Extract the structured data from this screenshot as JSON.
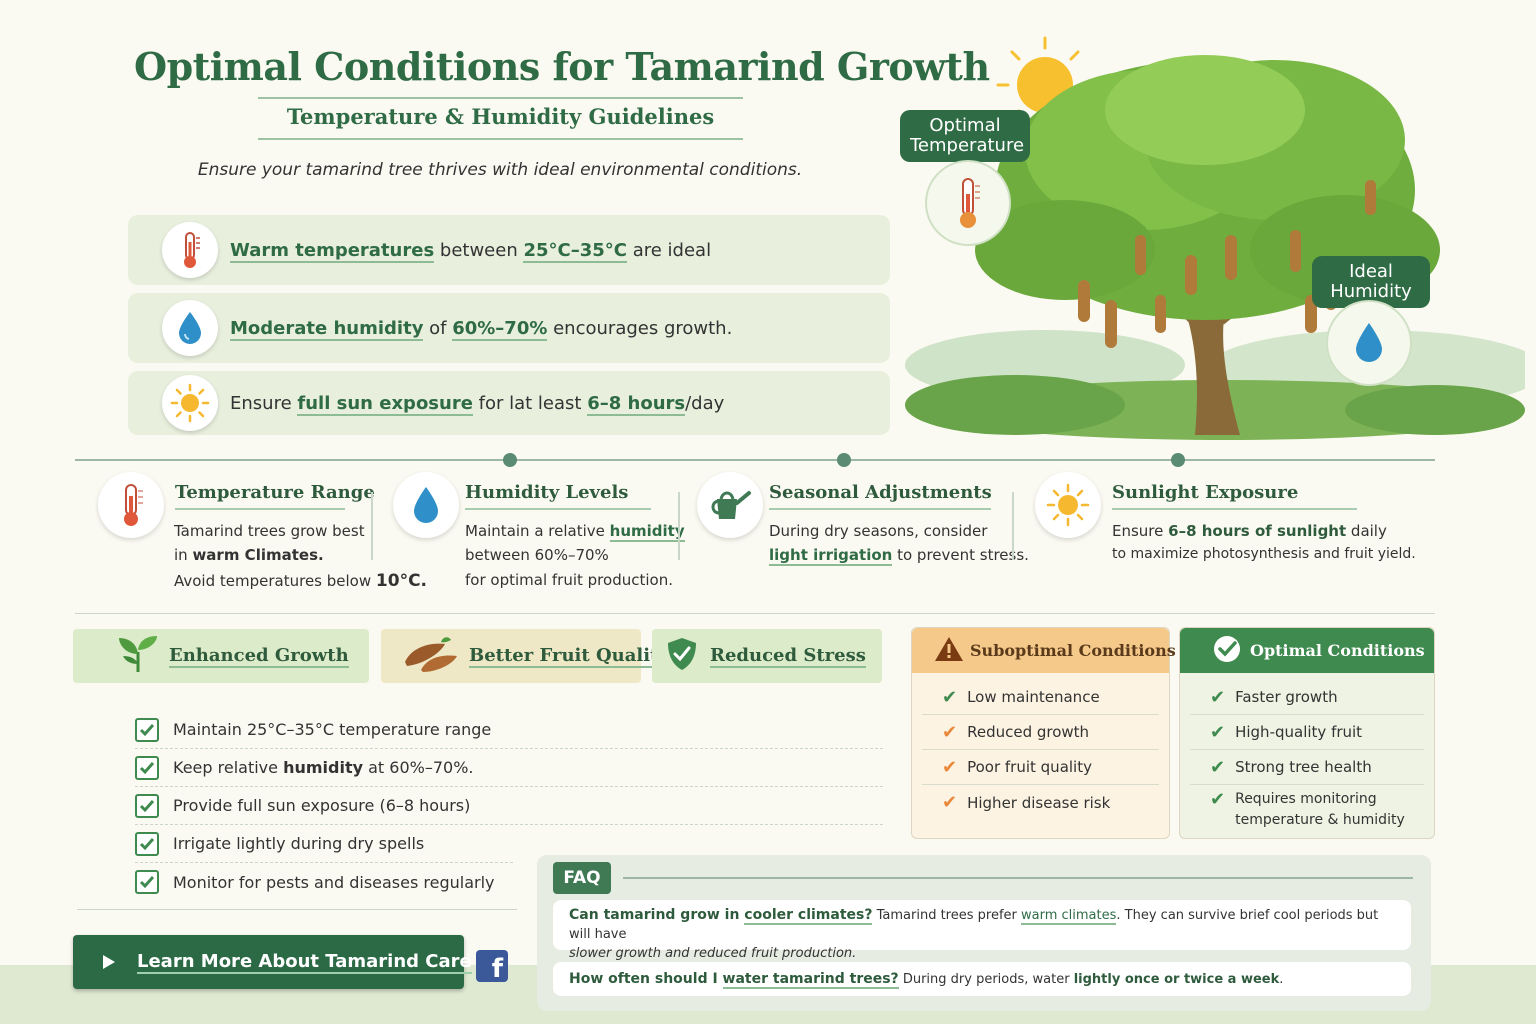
{
  "header": {
    "title": "Optimal Conditions for Tamarind Growth",
    "subtitle": "Temperature & Humidity Guidelines",
    "intro": "Ensure your tamarind tree thrives with ideal environmental conditions."
  },
  "highlights": [
    {
      "icon": "thermometer-icon",
      "strong": "Warm temperatures",
      "mid": " between ",
      "value": "25°C–35°C",
      "tail": " are ideal"
    },
    {
      "icon": "water-drop-icon",
      "strong": "Moderate humidity",
      "mid": " of ",
      "value": "60%–70%",
      "tail": " encourages growth."
    },
    {
      "icon": "sun-icon",
      "pre": "Ensure ",
      "strong": "full sun exposure",
      "mid": " for lat least ",
      "value": "6–8 hours",
      "tail": "/day"
    }
  ],
  "tree_badges": {
    "temperature": "Optimal Temperature",
    "humidity": "Ideal Humidity"
  },
  "features": [
    {
      "icon": "thermometer-icon",
      "title": "Temperature Range",
      "l1": "Tamarind trees grow best",
      "l2a": "in ",
      "l2b": "warm Climates.",
      "l3a": "Avoid temperatures below ",
      "l3b": "10°C."
    },
    {
      "icon": "water-drop-icon",
      "title": "Humidity Levels",
      "l1a": "Maintain a relative ",
      "l1b": "humidity",
      "l2": "between 60%–70%",
      "l3": "for optimal fruit production."
    },
    {
      "icon": "watering-can-icon",
      "title": "Seasonal Adjustments",
      "l1": "During dry seasons, consider",
      "l2a": "light irrigation",
      "l2b": " to prevent stress."
    },
    {
      "icon": "sun-icon",
      "title": "Sunlight Exposure",
      "l1a": "Ensure ",
      "l1b": "6–8 hours of sunlight",
      "l1c": " daily",
      "l2": "to maximize photosynthesis and fruit yield."
    }
  ],
  "benefits": [
    {
      "icon": "sprout-icon",
      "label": "Enhanced Growth"
    },
    {
      "icon": "tamarind-pod-icon",
      "label": "Better Fruit Quality"
    },
    {
      "icon": "shield-check-icon",
      "label": "Reduced Stress"
    }
  ],
  "checklist": [
    {
      "pre": "Maintain 25°C–35°C temperature range",
      "bold": "",
      "post": ""
    },
    {
      "pre": "Keep relative ",
      "bold": "humidity",
      "post": " at 60%–70%."
    },
    {
      "pre": "Provide full sun exposure (6–8 hours)",
      "bold": "",
      "post": ""
    },
    {
      "pre": "Irrigate lightly during dry spells",
      "bold": "",
      "post": ""
    },
    {
      "pre": "Monitor for pests and diseases regularly",
      "bold": "",
      "post": ""
    }
  ],
  "cta": {
    "label": "Learn More About Tamarind Care"
  },
  "social": {
    "facebook": "f"
  },
  "suboptimal": {
    "title": "Suboptimal Conditions",
    "items": [
      "Low maintenance",
      "Reduced growth",
      "Poor fruit quality",
      "Higher disease risk"
    ],
    "color": "#f4c98a"
  },
  "optimal": {
    "title": "Optimal Conditions",
    "items": [
      "Faster growth",
      "High-quality fruit",
      "Strong tree health",
      "Requires monitoring",
      "temperature & humidity"
    ],
    "color": "#3f8a4f"
  },
  "faq": {
    "tag": "FAQ",
    "items": [
      {
        "q1": "Can tamarind grow in ",
        "q2": "cooler climates?",
        "a1": " Tamarind trees prefer ",
        "a2": "warm climates",
        "a3": ". They can survive brief cool periods but will have",
        "a4": "slower growth and reduced fruit production."
      },
      {
        "q1": "How often should I ",
        "q2": "water tamarind trees?",
        "a1": "  During dry periods, water ",
        "a2": "lightly once or twice a week",
        "a3": "."
      }
    ]
  }
}
